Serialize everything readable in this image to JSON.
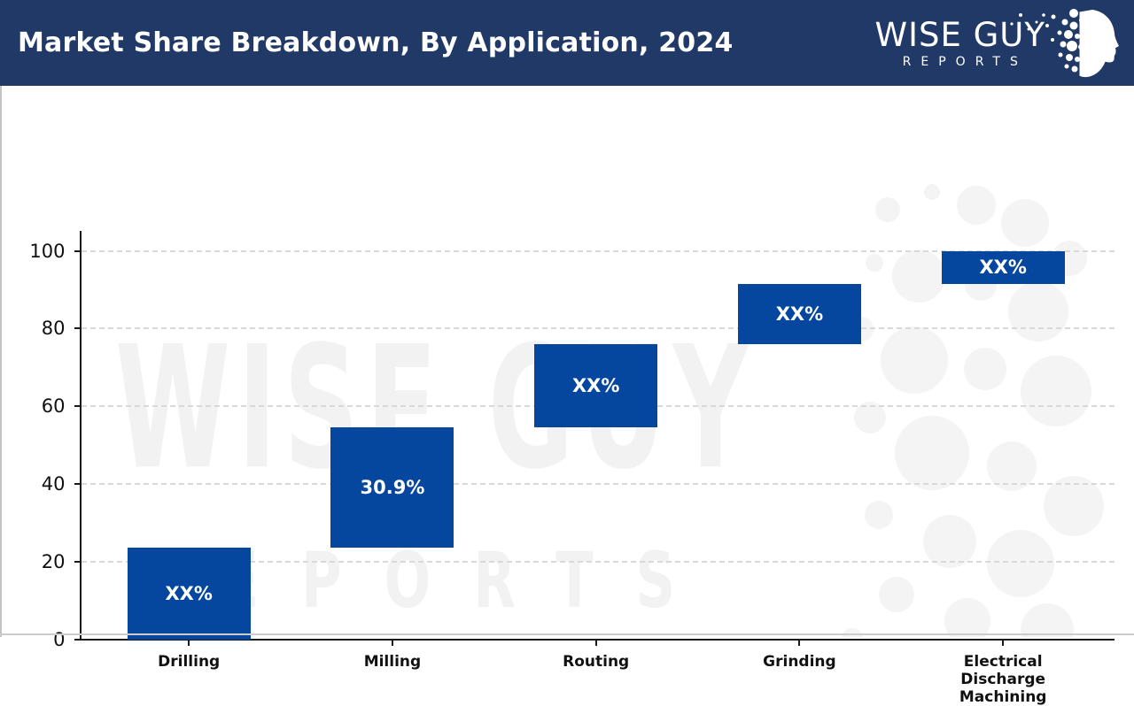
{
  "header": {
    "title": "Market Share Breakdown, By Application, 2024",
    "logo": {
      "line1": "WISE GUY",
      "line2": "REPORTS"
    }
  },
  "watermark": {
    "line1": "WISE GUY",
    "line2": "REPORTS"
  },
  "chart_data": {
    "type": "bar",
    "subtype": "waterfall",
    "title": "Market Share Breakdown, By Application, 2024",
    "categories": [
      "Drilling",
      "Milling",
      "Routing",
      "Grinding",
      "Electrical Discharge Machining"
    ],
    "values": [
      23.6,
      30.9,
      21.4,
      15.5,
      8.6
    ],
    "cumulative": [
      [
        0,
        23.6
      ],
      [
        23.6,
        54.5
      ],
      [
        54.5,
        75.9
      ],
      [
        75.9,
        91.4
      ],
      [
        91.4,
        100
      ]
    ],
    "bar_labels": [
      "XX%",
      "30.9%",
      "XX%",
      "XX%",
      "XX%"
    ],
    "xlabel": "",
    "ylabel": "",
    "yticks": [
      0,
      20,
      40,
      60,
      80,
      100
    ],
    "ylim": [
      0,
      104.8
    ],
    "grid": "horizontal-dashed",
    "legend": "none",
    "bar_color": "#05479E",
    "axis_color": "#1a1a1a",
    "gridline_color": "#d9d9d9",
    "bar_label_color": "#ffffff"
  }
}
